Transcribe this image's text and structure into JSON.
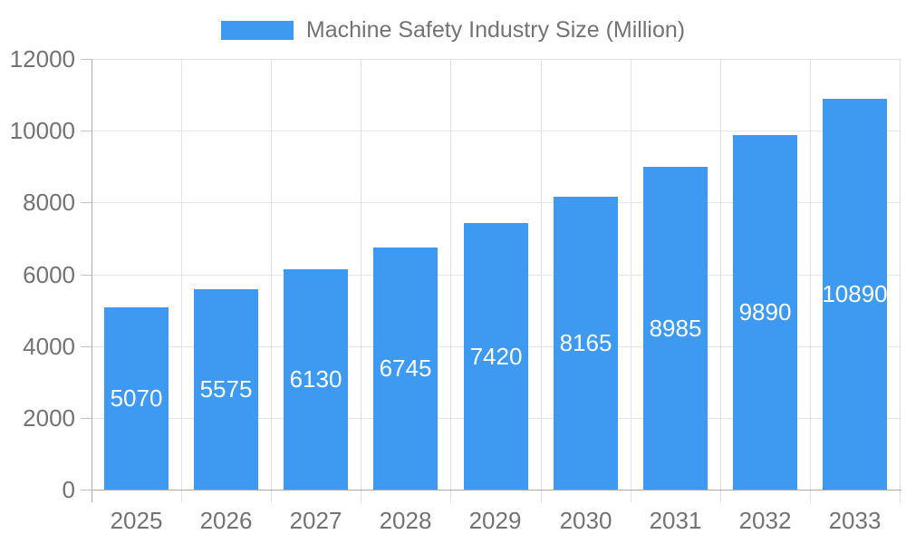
{
  "legend": {
    "label": "Machine Safety Industry Size (Million)"
  },
  "chart_data": {
    "type": "bar",
    "title": "Machine Safety Industry Size (Million)",
    "categories": [
      "2025",
      "2026",
      "2027",
      "2028",
      "2029",
      "2030",
      "2031",
      "2032",
      "2033"
    ],
    "values": [
      5070,
      5575,
      6130,
      6745,
      7420,
      8165,
      8985,
      9890,
      10890
    ],
    "xlabel": "",
    "ylabel": "",
    "ylim": [
      0,
      12000
    ],
    "yticks": [
      0,
      2000,
      4000,
      6000,
      8000,
      10000,
      12000
    ],
    "grid": true,
    "legend_position": "top-center",
    "value_labels": "inside-center",
    "colors": {
      "bar": "#3D9AF0",
      "axis_line": "#ababab",
      "gridline": "#e5e5e5",
      "tick": "#c2c2c2",
      "axis_text": "#737373",
      "value_label": "#ffffff",
      "background": "#ffffff"
    }
  }
}
